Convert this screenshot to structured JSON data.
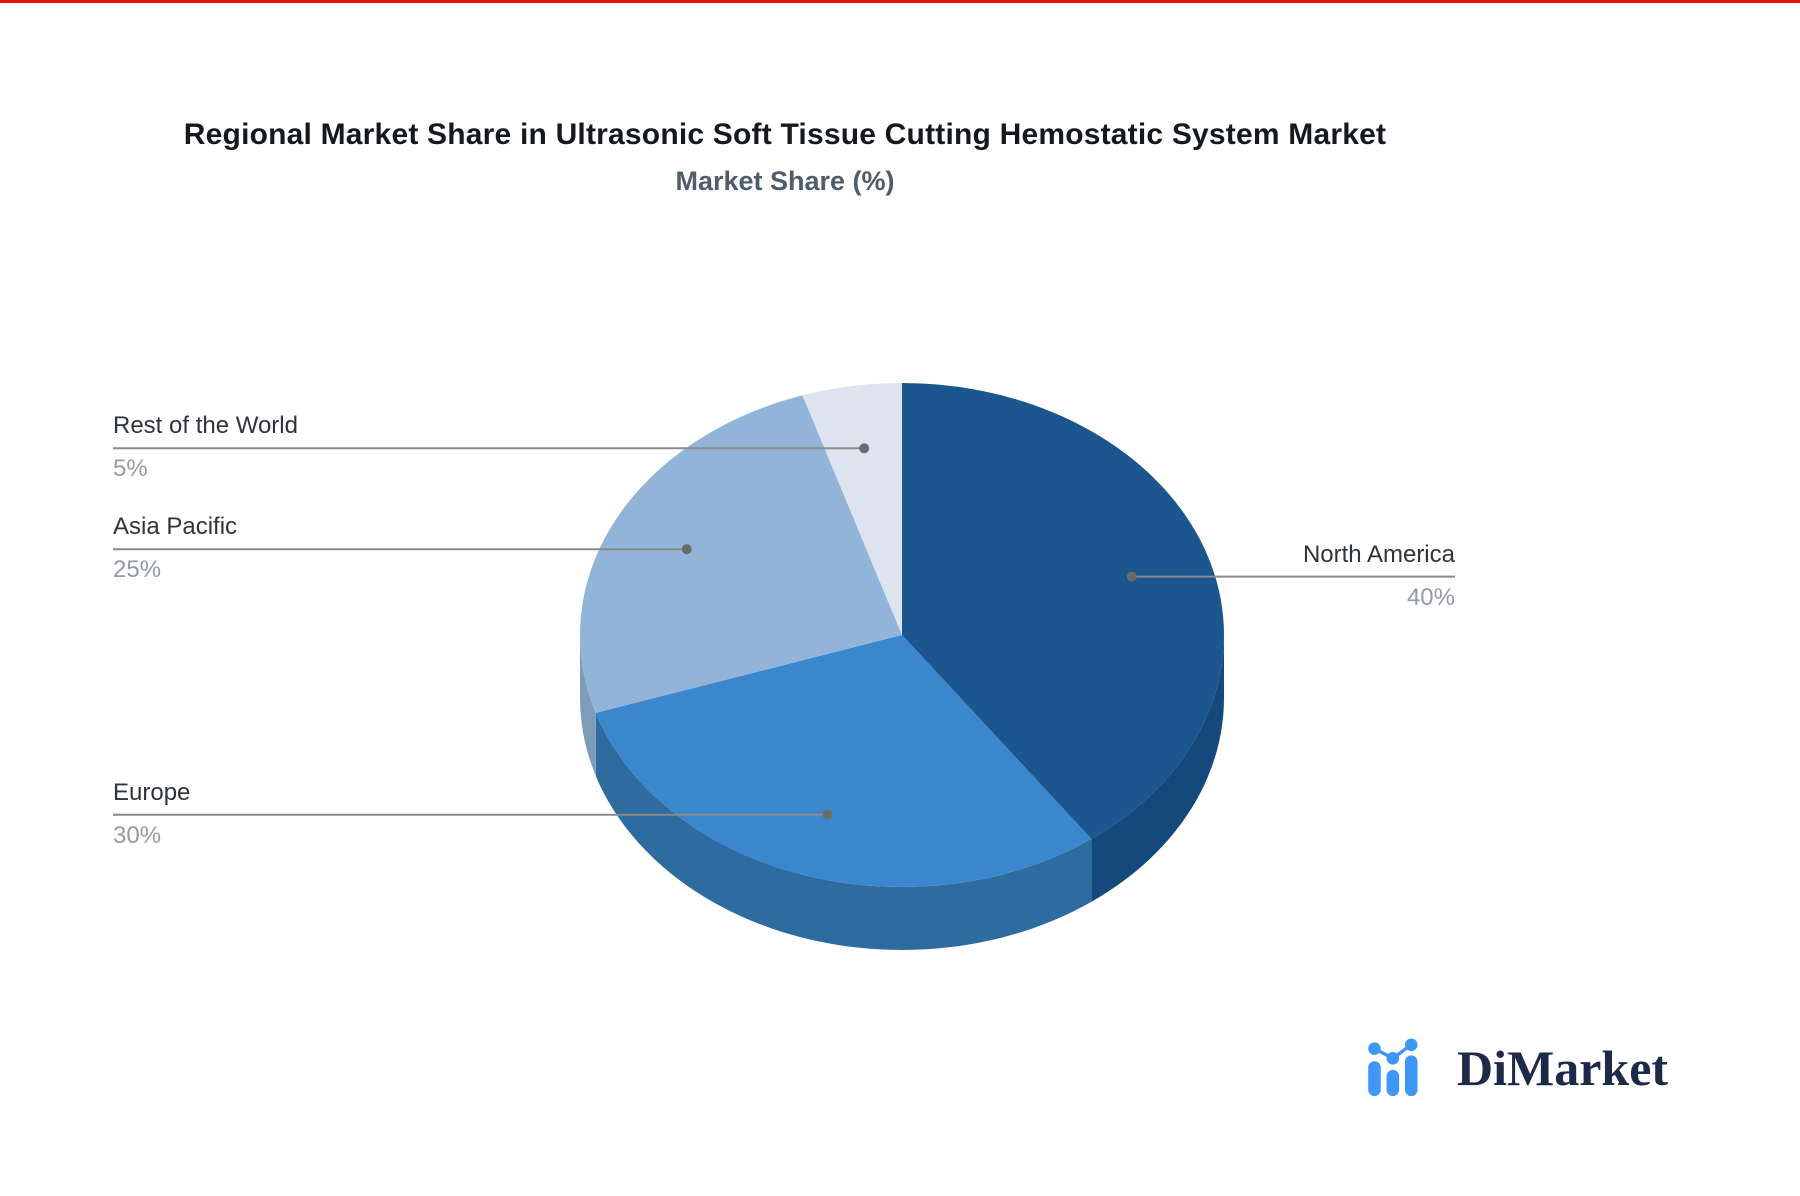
{
  "page": {
    "title": "Regional Market Share in Ultrasonic Soft Tissue Cutting Hemostatic System Market",
    "subtitle": "Market Share (%)"
  },
  "chart_data": {
    "type": "pie",
    "style": "3d",
    "title": "Regional Market Share in Ultrasonic Soft Tissue Cutting Hemostatic System Market",
    "subtitle": "Market Share (%)",
    "unit": "%",
    "direction": "clockwise",
    "start_angle_deg": 0,
    "legend_position": "callout-leader-lines",
    "categories": [
      "North America",
      "Europe",
      "Asia Pacific",
      "Rest of the World"
    ],
    "values": [
      40,
      30,
      25,
      5
    ],
    "segments": [
      {
        "label": "North America",
        "value": 40,
        "value_text": "40%",
        "color": "#1B568E",
        "side_color": "#15497C",
        "callout_side": "right"
      },
      {
        "label": "Europe",
        "value": 30,
        "value_text": "30%",
        "color": "#3B87CE",
        "side_color": "#2E6B9E",
        "callout_side": "left"
      },
      {
        "label": "Asia Pacific",
        "value": 25,
        "value_text": "25%",
        "color": "#93B4D9",
        "side_color": "#7E9CBA",
        "callout_side": "left"
      },
      {
        "label": "Rest of the World",
        "value": 5,
        "value_text": "5%",
        "color": "#DDE4EF",
        "side_color": "#C2CEDE",
        "callout_side": "left"
      }
    ]
  },
  "colors": {
    "background": "#FFFFFF",
    "top_edge_line": "#E8140C",
    "title": "#15191E",
    "subtitle": "#4E5C6C",
    "callout_label": "#2F343A",
    "callout_percent": "#949AA2",
    "leader_line": "#8A8A8A",
    "leader_dot": "#6B6B6B"
  },
  "branding": {
    "name": "DiMarket",
    "icon": "bar-line-chart-icon",
    "icon_color": "#3F97F5",
    "text_color": "#1C2A47"
  }
}
